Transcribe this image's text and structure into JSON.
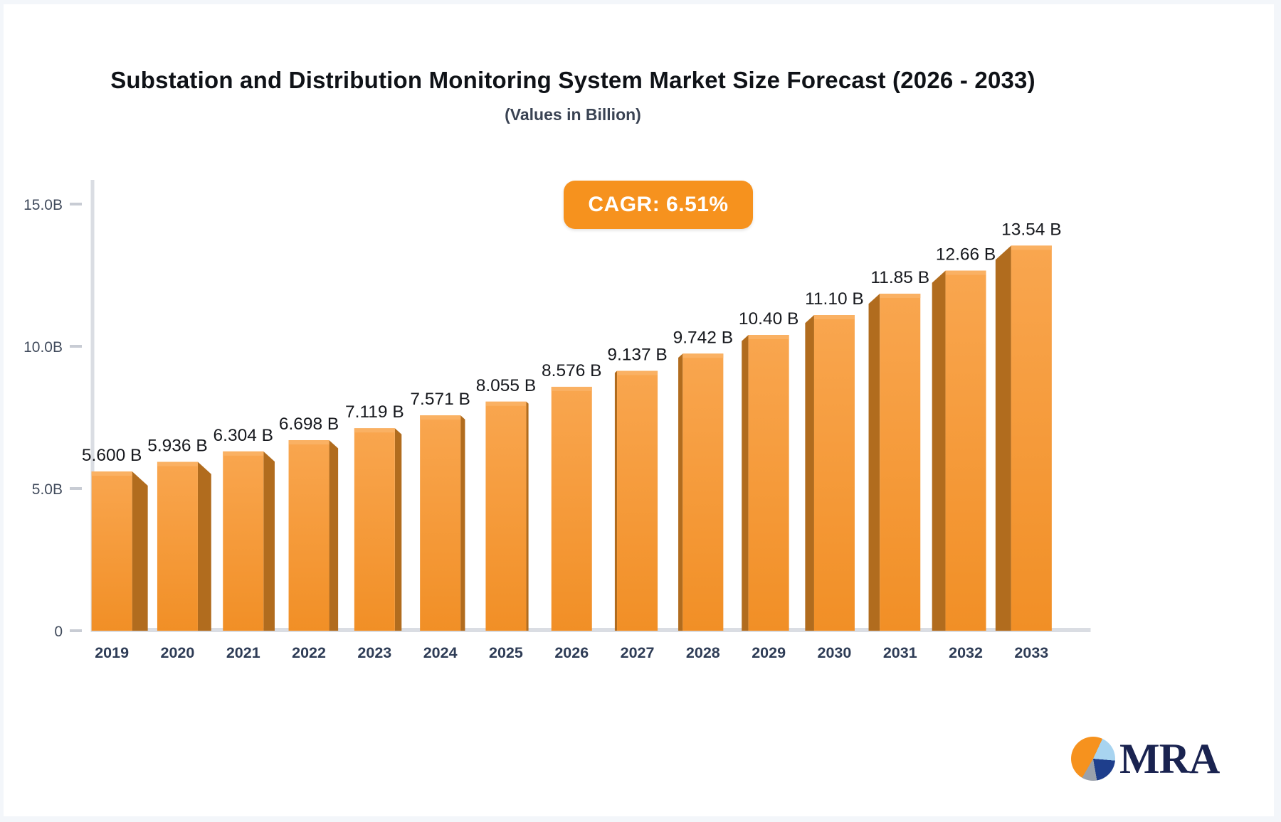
{
  "title": "Substation and Distribution Monitoring System Market Size Forecast (2026 - 2033)",
  "subtitle": "(Values in Billion)",
  "cagr": {
    "label": "CAGR: 6.51%"
  },
  "chart_data": {
    "type": "bar",
    "categories": [
      "2019",
      "2020",
      "2021",
      "2022",
      "2023",
      "2024",
      "2025",
      "2026",
      "2027",
      "2028",
      "2029",
      "2030",
      "2031",
      "2032",
      "2033"
    ],
    "values": [
      5.6,
      5.936,
      6.304,
      6.698,
      7.119,
      7.571,
      8.055,
      8.576,
      9.137,
      9.742,
      10.4,
      11.1,
      11.85,
      12.66,
      13.54
    ],
    "value_labels": [
      "5.600 B",
      "5.936 B",
      "6.304 B",
      "6.698 B",
      "7.119 B",
      "7.571 B",
      "8.055 B",
      "8.576 B",
      "9.137 B",
      "9.742 B",
      "10.40 B",
      "11.10 B",
      "11.85 B",
      "12.66 B",
      "13.54 B"
    ],
    "y_ticks": [
      {
        "label": "15.0B",
        "value": 15
      },
      {
        "label": "10.0B",
        "value": 10
      },
      {
        "label": "5.0B",
        "value": 5
      },
      {
        "label": "0",
        "value": 0
      }
    ],
    "ylim": [
      0,
      15
    ],
    "xlabel": "",
    "ylabel": "",
    "legend": null,
    "grid": false
  },
  "colors": {
    "accent_orange": "#F6921E",
    "bar_front_top": "#F9A64F",
    "bar_front_bottom": "#F18F26",
    "bar_top_highlight": "#FAB163",
    "bar_side": "#B16C1E",
    "axis_line": "#DADDE3",
    "tick_mark": "#C8CCD4",
    "tick_label": "#414B5C",
    "year_label": "#2E3C56",
    "value_label": "#17191E",
    "logo_navy": "#1A2350",
    "logo_pie_orange": "#F6921E",
    "logo_pie_light_blue": "#A8D4F0",
    "logo_pie_dark_blue": "#1E3E8C",
    "logo_pie_gray": "#9AA1AC"
  },
  "logo": {
    "text": "MRA"
  }
}
